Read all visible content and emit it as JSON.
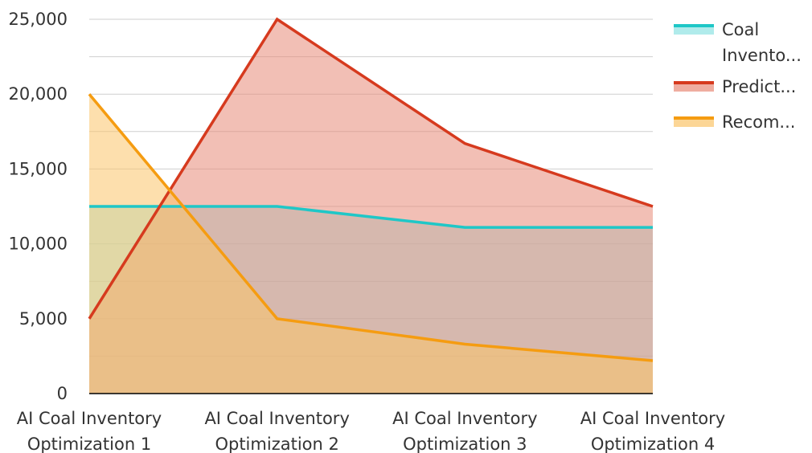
{
  "chart_data": {
    "type": "area",
    "categories": [
      [
        "AI Coal Inventory",
        "Optimization 1"
      ],
      [
        "AI Coal Inventory",
        "Optimization 2"
      ],
      [
        "AI Coal Inventory",
        "Optimization 3"
      ],
      [
        "AI Coal Inventory",
        "Optimization 4"
      ]
    ],
    "ylim": [
      0,
      25000
    ],
    "y_ticks": [
      0,
      5000,
      10000,
      15000,
      20000,
      25000
    ],
    "y_tick_labels": [
      "0",
      "5,000",
      "10,000",
      "15,000",
      "20,000",
      "25,000"
    ],
    "grid": true,
    "legend_position": "top-right",
    "series": [
      {
        "name": "Coal Invento...",
        "legend_lines": [
          "Coal",
          "Invento..."
        ],
        "values": [
          12500,
          12500,
          11100,
          11100
        ],
        "color": "#1fc7c7",
        "fill": "#8fe3e3"
      },
      {
        "name": "Predict...",
        "legend_lines": [
          "Predict..."
        ],
        "values": [
          5000,
          25000,
          16700,
          12500
        ],
        "color": "#d63a1e",
        "fill": "#e88a78"
      },
      {
        "name": "Recom...",
        "legend_lines": [
          "Recom..."
        ],
        "values": [
          20000,
          5000,
          3300,
          2200
        ],
        "color": "#f59c11",
        "fill": "#fbc46a"
      }
    ]
  }
}
